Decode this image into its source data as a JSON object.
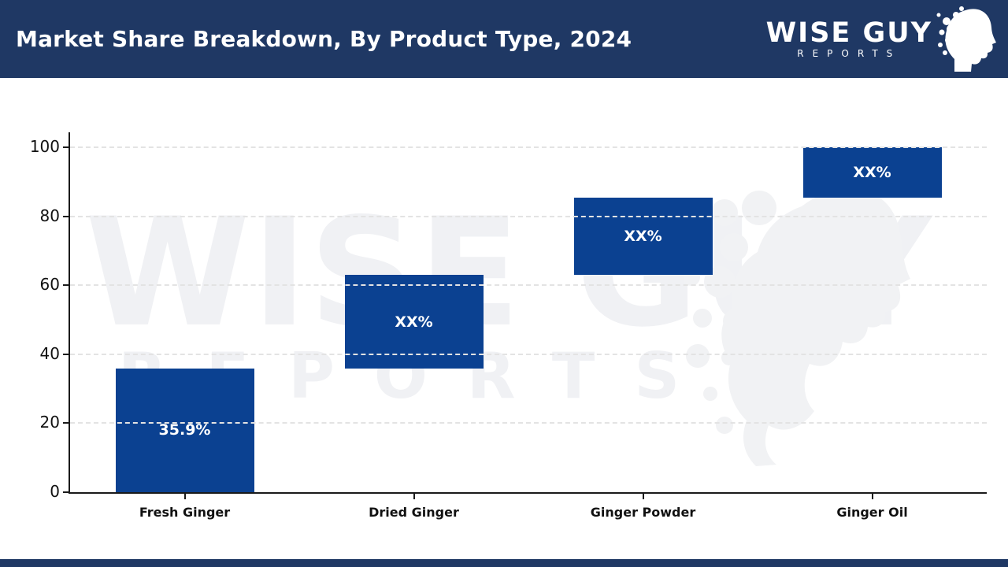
{
  "header": {
    "title": "Market Share Breakdown, By Product Type, 2024",
    "logo": {
      "line1": "WISE GUY",
      "line2": "REPORTS"
    }
  },
  "watermark": {
    "line1": "WISE GUY",
    "line2": "REPORTS"
  },
  "theme": {
    "header_bg": "#1f3864",
    "footer_bg": "#1f3864",
    "bar_color": "#0b4191",
    "bar_label_color": "#ffffff",
    "grid_color": "#e3e3e3",
    "axis_color": "#1a1a1a",
    "watermark_color": "#f0f1f4"
  },
  "chart_data": {
    "type": "bar",
    "subtype": "waterfall",
    "title": "Market Share Breakdown, By Product Type, 2024",
    "xlabel": "",
    "ylabel": "",
    "categories": [
      "Fresh Ginger",
      "Dried Ginger",
      "Ginger Powder",
      "Ginger Oil"
    ],
    "segments": [
      {
        "category": "Fresh Ginger",
        "start": 0,
        "end": 35.9,
        "label": "35.9%"
      },
      {
        "category": "Dried Ginger",
        "start": 35.9,
        "end": 62.9,
        "label": "XX%"
      },
      {
        "category": "Ginger Powder",
        "start": 62.9,
        "end": 85.4,
        "label": "XX%"
      },
      {
        "category": "Ginger Oil",
        "start": 85.4,
        "end": 100,
        "label": "XX%"
      }
    ],
    "ylim": [
      0,
      100
    ],
    "yticks": [
      0,
      20,
      40,
      60,
      80,
      100
    ],
    "grid": "horizontal dashed, drawn above bars",
    "legend": "none"
  }
}
